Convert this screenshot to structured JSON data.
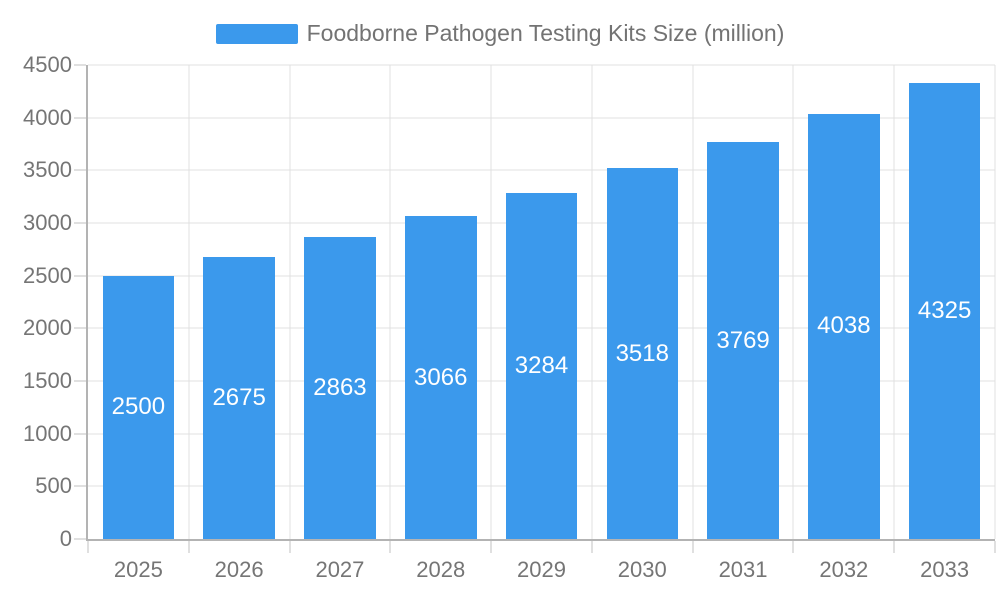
{
  "chart_data": {
    "type": "bar",
    "title": "Foodborne Pathogen Testing Kits Size (million)",
    "categories": [
      "2025",
      "2026",
      "2027",
      "2028",
      "2029",
      "2030",
      "2031",
      "2032",
      "2033"
    ],
    "series": [
      {
        "name": "Foodborne Pathogen Testing Kits Size (million)",
        "values": [
          2500,
          2675,
          2863,
          3066,
          3284,
          3518,
          3769,
          4038,
          4325
        ]
      }
    ],
    "xlabel": "",
    "ylabel": "",
    "ylim": [
      0,
      4500
    ],
    "ytick_step": 500,
    "grid": true,
    "legend_position": "top",
    "colors": {
      "bar": "#3B99EC",
      "bar_value_label": "#FFFFFF",
      "axis_text": "#757575",
      "legend_text": "#737373",
      "axis_line": "#B3B3B3",
      "gridline": "#E0E0E0",
      "background": "#FFFFFF"
    }
  }
}
